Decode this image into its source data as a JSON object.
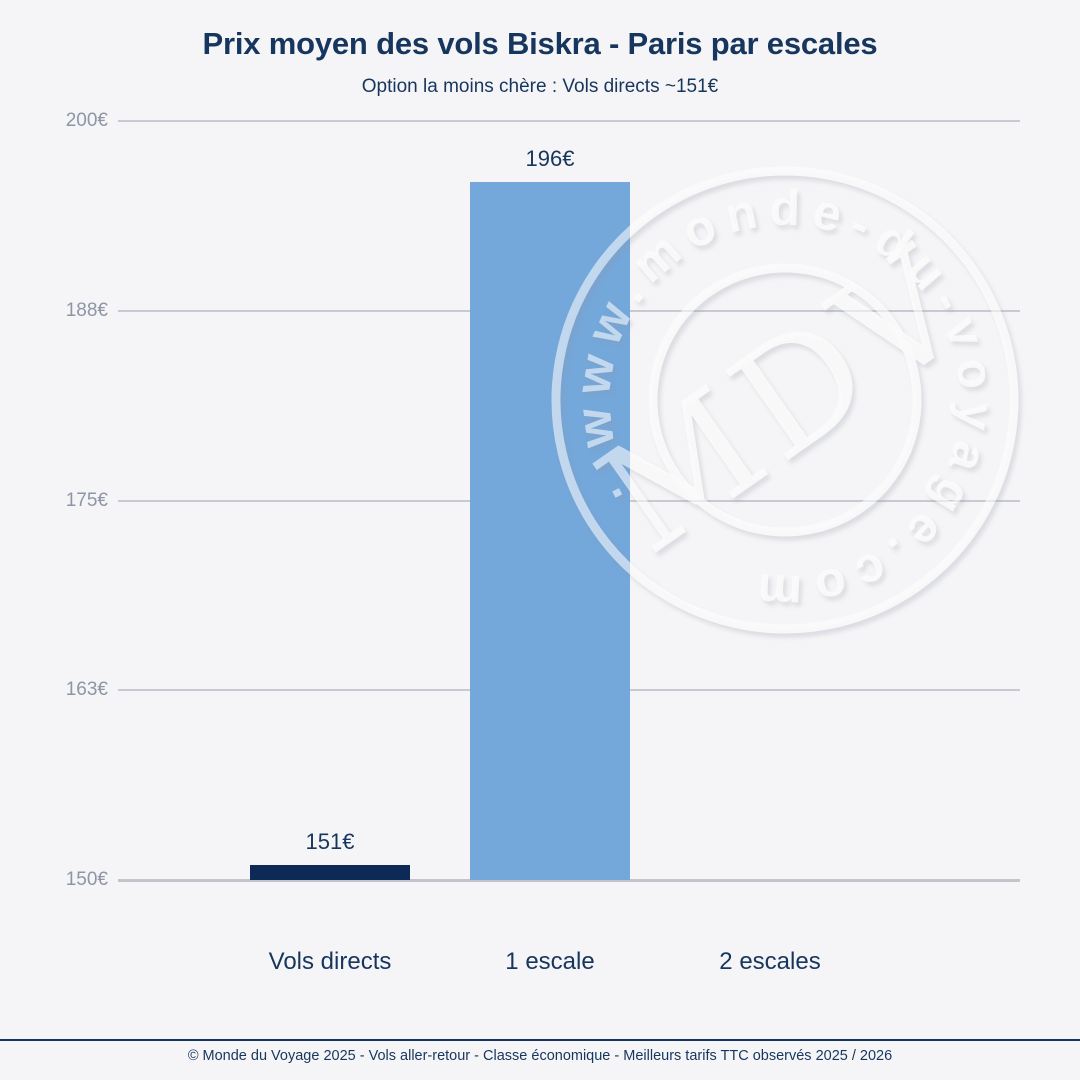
{
  "title": "Prix moyen des vols Biskra - Paris par escales",
  "subtitle": "Option la moins chère : Vols directs ~151€",
  "watermark": {
    "ring_text": "· www.monde-du-voyage.com",
    "center_text": "MDV"
  },
  "footer": {
    "text": "© Monde du Voyage 2025 - Vols aller-retour - Classe économique - Meilleurs tarifs TTC observés 2025 / 2026"
  },
  "colors": {
    "background": "#f5f5f7",
    "heading": "#17365d",
    "axis_label": "#8d95a6",
    "gridline": "#c7cad2",
    "bar_direct": "#0d2a56",
    "bar_one_stop": "#74a7da",
    "footer_line": "#15345f"
  },
  "chart_data": {
    "type": "bar",
    "title": "Prix moyen des vols Biskra - Paris par escales",
    "subtitle": "Option la moins chère : Vols directs ~151€",
    "categories": [
      "Vols directs",
      "1 escale",
      "2 escales"
    ],
    "values": [
      151,
      196,
      null
    ],
    "value_labels": [
      "151€",
      "196€",
      ""
    ],
    "bar_colors": [
      "#0d2a56",
      "#74a7da",
      null
    ],
    "ylim": [
      150,
      200
    ],
    "yticks": [
      150,
      162.5,
      175,
      187.5,
      200
    ],
    "ytick_labels": [
      "150€",
      "163€",
      "175€",
      "188€",
      "200€"
    ],
    "ylabel": "",
    "xlabel": "",
    "grid": true,
    "legend": false,
    "currency": "EUR"
  }
}
